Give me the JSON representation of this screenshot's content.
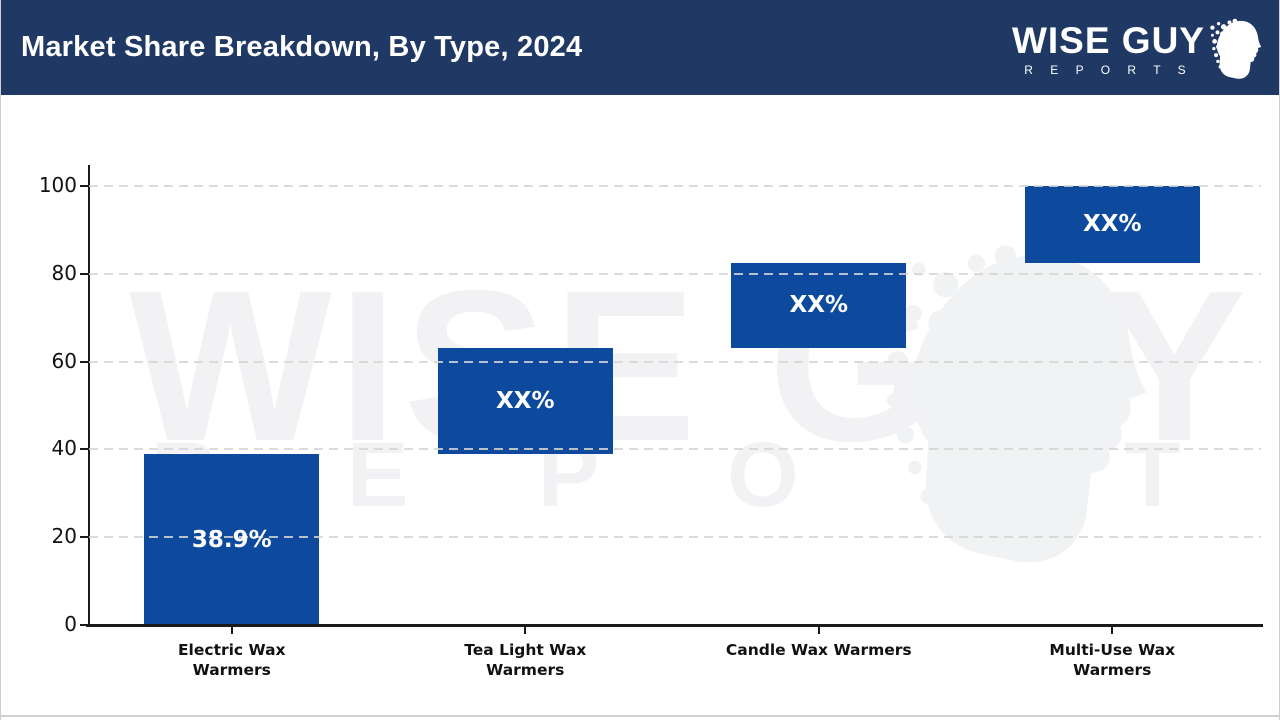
{
  "header": {
    "title": "Market Share Breakdown, By Type, 2024",
    "logo": {
      "line1": "WISE GUY",
      "line2": "R E P O R T S"
    }
  },
  "watermark": {
    "line1": "WISE GUY",
    "line2": "R E P O R T S"
  },
  "colors": {
    "header_bg": "#1f3864",
    "bar": "#0d4a9e",
    "bar_label": "#ffffff",
    "axis": "#1a1a1a",
    "grid": "#d5d5d5",
    "watermark": "#f2f2f4"
  },
  "chart_data": {
    "type": "bar",
    "subtype": "waterfall",
    "title": "Market Share Breakdown, By Type, 2024",
    "categories": [
      {
        "lines": [
          "Electric Wax",
          "Warmers"
        ]
      },
      {
        "lines": [
          "Tea Light Wax",
          "Warmers"
        ]
      },
      {
        "lines": [
          "Candle Wax Warmers"
        ]
      },
      {
        "lines": [
          "Multi-Use Wax",
          "Warmers"
        ]
      }
    ],
    "segments": [
      {
        "category": "Electric Wax Warmers",
        "start": 0,
        "end": 38.9,
        "label": "38.9%"
      },
      {
        "category": "Tea Light Wax Warmers",
        "start": 38.9,
        "end": 63.2,
        "label": "XX%"
      },
      {
        "category": "Candle Wax Warmers",
        "start": 63.2,
        "end": 82.5,
        "label": "XX%"
      },
      {
        "category": "Multi-Use Wax Warmers",
        "start": 82.5,
        "end": 100,
        "label": "XX%"
      }
    ],
    "ylim": [
      0,
      100
    ],
    "yticks": [
      0,
      20,
      40,
      60,
      80,
      100
    ],
    "xlabel": "",
    "ylabel": "",
    "grid": "horizontal-dashed",
    "legend": null
  }
}
